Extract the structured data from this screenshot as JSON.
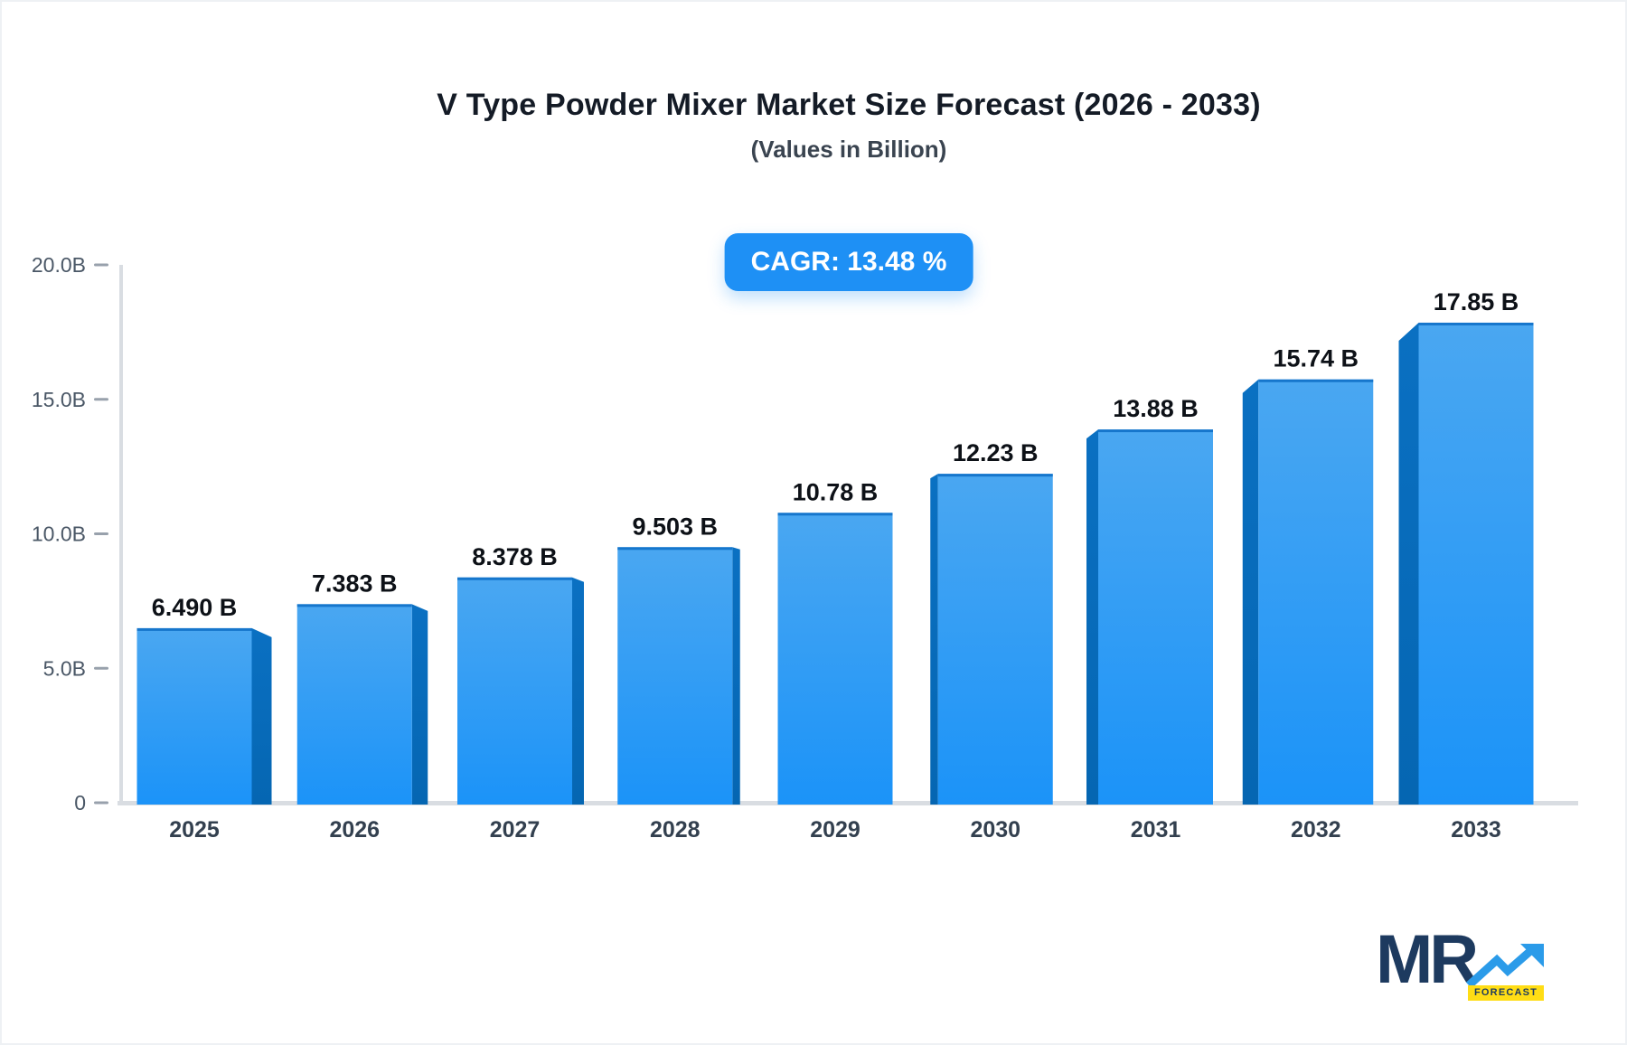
{
  "chart": {
    "title": "V Type Powder Mixer Market Size Forecast (2026 - 2033)",
    "subtitle": "(Values in Billion)",
    "cagr_label": "CAGR: 13.48 %"
  },
  "logo": {
    "brand": "MR",
    "sub": "FORECAST"
  },
  "chart_data": {
    "type": "bar",
    "title": "V Type Powder Mixer Market Size Forecast (2026 - 2033)",
    "subtitle": "(Values in Billion)",
    "annotation": "CAGR: 13.48 %",
    "categories": [
      "2025",
      "2026",
      "2027",
      "2028",
      "2029",
      "2030",
      "2031",
      "2032",
      "2033"
    ],
    "values": [
      6.49,
      7.383,
      8.378,
      9.503,
      10.78,
      12.23,
      13.88,
      15.74,
      17.85
    ],
    "value_labels": [
      "6.490 B",
      "7.383 B",
      "8.378 B",
      "9.503 B",
      "10.78 B",
      "12.23 B",
      "13.88 B",
      "15.74 B",
      "17.85 B"
    ],
    "xlabel": "",
    "ylabel": "",
    "ylim": [
      0,
      20
    ],
    "grid": false,
    "legend": false,
    "yaxis": {
      "tick_values": [
        0,
        5,
        10,
        15,
        20
      ],
      "tick_labels": [
        "0",
        "5.0B",
        "10.0B",
        "15.0B",
        "20.0B"
      ]
    },
    "colors": {
      "bar_face_top": "#4aa7f1",
      "bar_face_bottom": "#1b93f8",
      "bar_top_edge": "#1171c8",
      "bar_side_top": "#0a70c2",
      "bar_side_bottom": "#0566b2",
      "axis_line": "#d9dde2",
      "tick_mark": "#98a1ac",
      "y_label": "#4a5766",
      "x_label": "#33404f",
      "value_label": "#0d1117",
      "badge_bg": "#1e90f5",
      "logo_navy": "#1d3a5f",
      "logo_blue": "#2b9be9",
      "logo_yellow": "#ffdd15"
    }
  }
}
